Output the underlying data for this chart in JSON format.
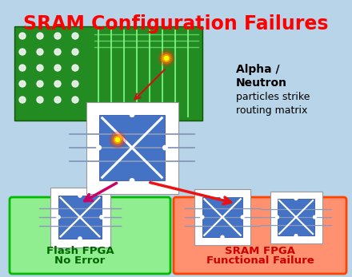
{
  "title": "SRAM Configuration Failures",
  "title_color": "#FF0000",
  "title_fontsize": 17,
  "bg_color": "#B8D4E8",
  "alpha_neutron_bold": "Alpha /\nNeutron",
  "alpha_neutron_normal": "particles strike\nrouting matrix",
  "flash_label_line1": "Flash FPGA",
  "flash_label_line2": "No Error",
  "sram_label_line1": "SRAM FPGA",
  "sram_label_line2": "Functional Failure",
  "flash_box_color": "#90EE90",
  "flash_box_edge": "#00BB00",
  "sram_box_color": "#FF9070",
  "sram_box_edge": "#FF4400",
  "flash_text_color": "#006600",
  "sram_text_color": "#CC0000",
  "blue_box_color": "#4472C4",
  "white_box_color": "#FFFFFF",
  "green_pcb_color": "#228B22",
  "arrow_pink_color": "#CC0066",
  "arrow_red_color": "#EE1111"
}
